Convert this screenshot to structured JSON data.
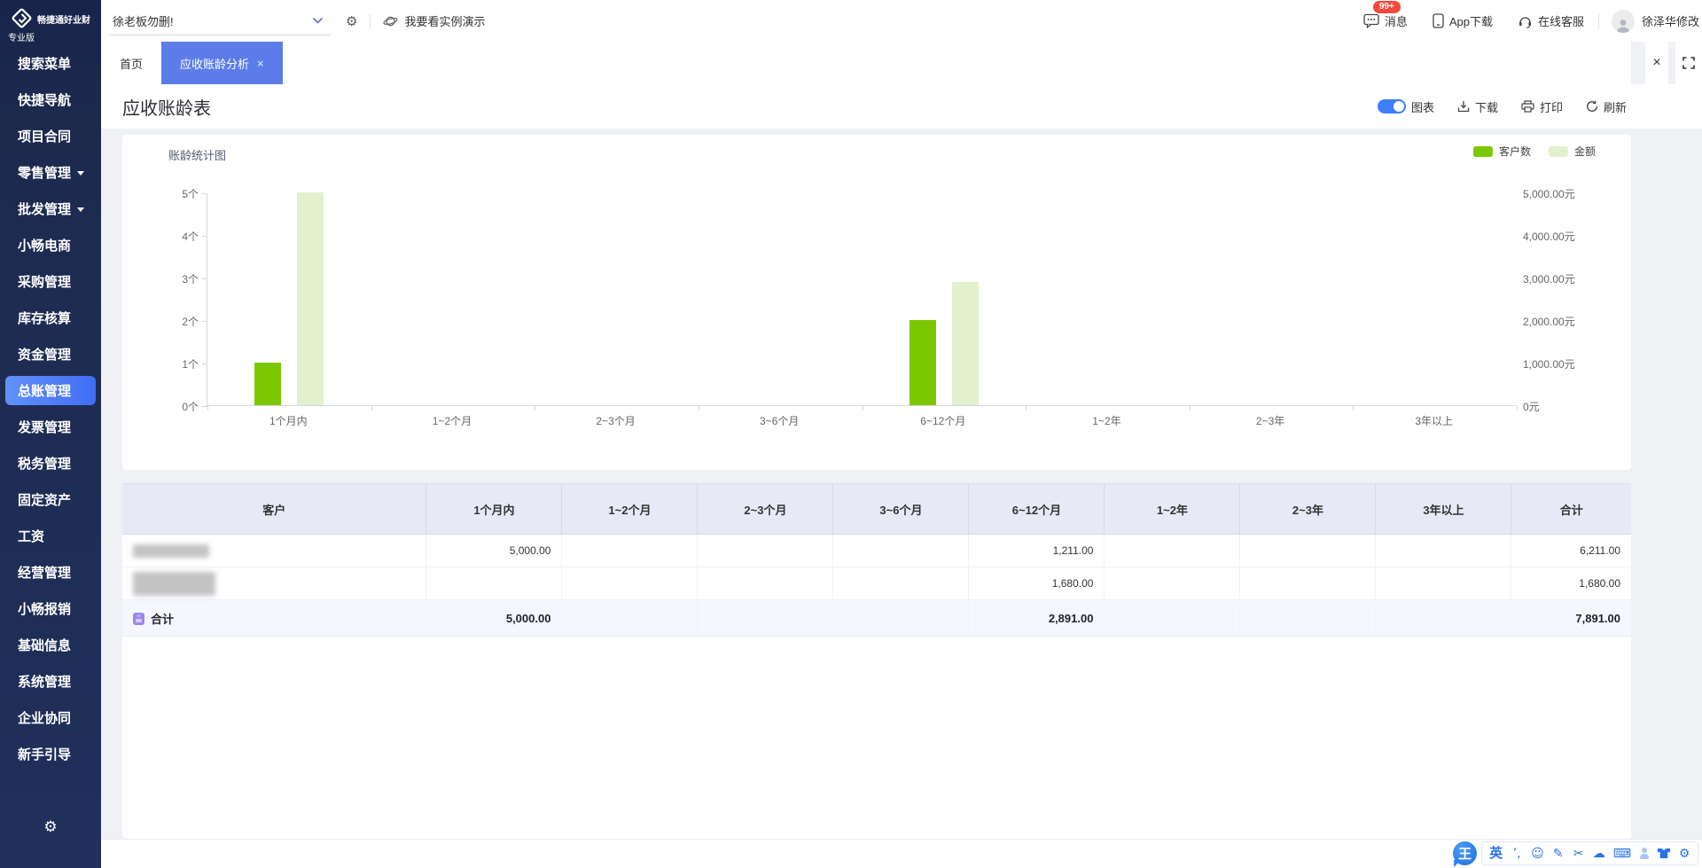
{
  "app": {
    "brand": "畅捷通好业财",
    "edition": "专业版"
  },
  "topbar": {
    "company_selector": "徐老板勿删!",
    "demo_label": "我要看实例演示",
    "messages_label": "消息",
    "messages_badge": "99+",
    "app_download_label": "App下载",
    "support_label": "在线客服",
    "user_name": "徐泽华修改"
  },
  "sidebar": {
    "items": [
      {
        "label": "搜索菜单",
        "active": false,
        "has_arrow": false
      },
      {
        "label": "快捷导航",
        "active": false,
        "has_arrow": false
      },
      {
        "label": "项目合同",
        "active": false,
        "has_arrow": false
      },
      {
        "label": "零售管理",
        "active": false,
        "has_arrow": true
      },
      {
        "label": "批发管理",
        "active": false,
        "has_arrow": true
      },
      {
        "label": "小畅电商",
        "active": false,
        "has_arrow": false
      },
      {
        "label": "采购管理",
        "active": false,
        "has_arrow": false
      },
      {
        "label": "库存核算",
        "active": false,
        "has_arrow": false
      },
      {
        "label": "资金管理",
        "active": false,
        "has_arrow": false
      },
      {
        "label": "总账管理",
        "active": true,
        "has_arrow": false
      },
      {
        "label": "发票管理",
        "active": false,
        "has_arrow": false
      },
      {
        "label": "税务管理",
        "active": false,
        "has_arrow": false
      },
      {
        "label": "固定资产",
        "active": false,
        "has_arrow": false
      },
      {
        "label": "工资",
        "active": false,
        "has_arrow": false
      },
      {
        "label": "经营管理",
        "active": false,
        "has_arrow": false
      },
      {
        "label": "小畅报销",
        "active": false,
        "has_arrow": false
      },
      {
        "label": "基础信息",
        "active": false,
        "has_arrow": false
      },
      {
        "label": "系统管理",
        "active": false,
        "has_arrow": false
      },
      {
        "label": "企业协同",
        "active": false,
        "has_arrow": false
      },
      {
        "label": "新手引导",
        "active": false,
        "has_arrow": false
      }
    ]
  },
  "tabs": [
    {
      "label": "首页",
      "active": false,
      "closable": false
    },
    {
      "label": "应收账龄分析",
      "active": true,
      "closable": true
    }
  ],
  "page": {
    "title": "应收账龄表",
    "controls": {
      "chart_toggle_label": "图表",
      "toggle_on": true,
      "download_label": "下载",
      "print_label": "打印",
      "refresh_label": "刷新"
    }
  },
  "chart_data": {
    "type": "bar",
    "title": "账龄统计图",
    "categories": [
      "1个月内",
      "1~2个月",
      "2~3个月",
      "3~6个月",
      "6~12个月",
      "1~2年",
      "2~3年",
      "3年以上"
    ],
    "series": [
      {
        "name": "客户数",
        "color": "#7cc800",
        "axis": "left",
        "values": [
          1,
          0,
          0,
          0,
          2,
          0,
          0,
          0
        ]
      },
      {
        "name": "金额",
        "color": "#e3f0cd",
        "axis": "right",
        "values": [
          5000,
          0,
          0,
          0,
          2891,
          0,
          0,
          0
        ]
      }
    ],
    "left_axis": {
      "label_unit": "个",
      "ticks": [
        "5个",
        "4个",
        "3个",
        "2个",
        "1个",
        "0个"
      ],
      "max": 5
    },
    "right_axis": {
      "label_unit": "元",
      "ticks": [
        "5,000.00元",
        "4,000.00元",
        "3,000.00元",
        "2,000.00元",
        "1,000.00元",
        "0元"
      ],
      "max": 5000
    },
    "legend_position": "top-right",
    "grid": false
  },
  "table": {
    "columns": [
      "客户",
      "1个月内",
      "1~2个月",
      "2~3个月",
      "3~6个月",
      "6~12个月",
      "1~2年",
      "2~3年",
      "3年以上",
      "合计"
    ],
    "rows": [
      {
        "customer_blurred": true,
        "blur_lines": 1,
        "values": [
          "5,000.00",
          "",
          "",
          "",
          "1,211.00",
          "",
          "",
          "",
          "6,211.00"
        ]
      },
      {
        "customer_blurred": true,
        "blur_lines": 2,
        "values": [
          "",
          "",
          "",
          "",
          "1,680.00",
          "",
          "",
          "",
          "1,680.00"
        ]
      }
    ],
    "total_row": {
      "label": "合计",
      "values": [
        "5,000.00",
        "",
        "",
        "",
        "2,891.00",
        "",
        "",
        "",
        "7,891.00"
      ]
    }
  },
  "ime": {
    "logo_char": "王",
    "icons": [
      {
        "name": "lang-mode-icon",
        "glyph": "英",
        "style": "lang"
      },
      {
        "name": "punctuation-mode-icon",
        "glyph": "’,"
      },
      {
        "name": "emoji-picker-icon",
        "glyph": "☺"
      },
      {
        "name": "handwriting-icon",
        "glyph": "✎"
      },
      {
        "name": "screenshot-scissors-icon",
        "glyph": "✂"
      },
      {
        "name": "cloud-sync-icon",
        "glyph": "☁"
      },
      {
        "name": "virtual-keyboard-icon",
        "glyph": "⌨"
      },
      {
        "name": "user-profile-icon",
        "shape": "person"
      },
      {
        "name": "skin-theme-icon",
        "shape": "tshirt"
      },
      {
        "name": "ime-settings-icon",
        "glyph": "⚙"
      }
    ]
  },
  "colors": {
    "accent_blue": "#5c7de9",
    "toggle_blue": "#3f7dfb",
    "sidebar_navy": "#1d2a4e",
    "series_green": "#7cc800",
    "series_light_green": "#e3f0cd",
    "badge_red": "#f5483b",
    "table_header_bg": "#e7eaf6",
    "total_row_bg": "#f4f8fe"
  }
}
